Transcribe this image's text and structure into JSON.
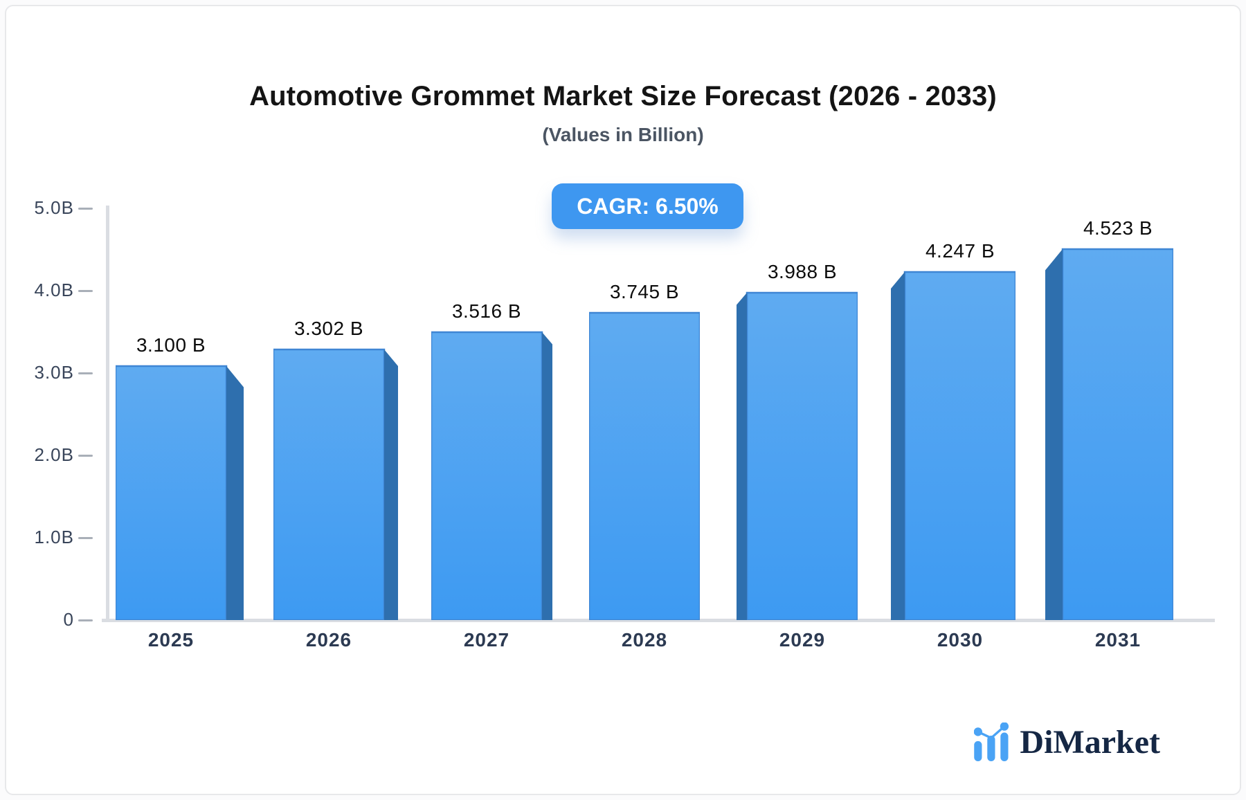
{
  "title": "Automotive Grommet Market Size Forecast (2026 - 2033)",
  "subtitle": "(Values in Billion)",
  "badge": {
    "label": "CAGR: 6.50%"
  },
  "watermark": {
    "brand": "DiMarket"
  },
  "colors": {
    "bar_top": "#5fabf1",
    "bar_bottom": "#3d9af2",
    "bar_outline": "#3f86d4",
    "bar_side": "#2e6fae",
    "badge_bg": "#3e97f0",
    "axis_line": "#dadde2",
    "tick_text": "#39455a",
    "logo_navy": "#152744",
    "logo_blue": "#4aa3f5"
  },
  "chart_data": {
    "type": "bar",
    "title": "Automotive Grommet Market Size Forecast (2026 - 2033)",
    "subtitle": "(Values in Billion)",
    "categories": [
      "2025",
      "2026",
      "2027",
      "2028",
      "2029",
      "2030",
      "2031"
    ],
    "values": [
      3.1,
      3.302,
      3.516,
      3.745,
      3.988,
      4.247,
      4.523
    ],
    "bar_labels": [
      "3.100 B",
      "3.302 B",
      "3.516 B",
      "3.745 B",
      "3.988 B",
      "4.247 B",
      "4.523 B"
    ],
    "cagr": "CAGR: 6.50%",
    "xlabel": "",
    "ylabel": "",
    "ylim": [
      0,
      5
    ],
    "yticks": [
      "5.0B",
      "4.0B",
      "3.0B",
      "2.0B",
      "1.0B",
      "0"
    ],
    "grid": false,
    "legend": false
  }
}
